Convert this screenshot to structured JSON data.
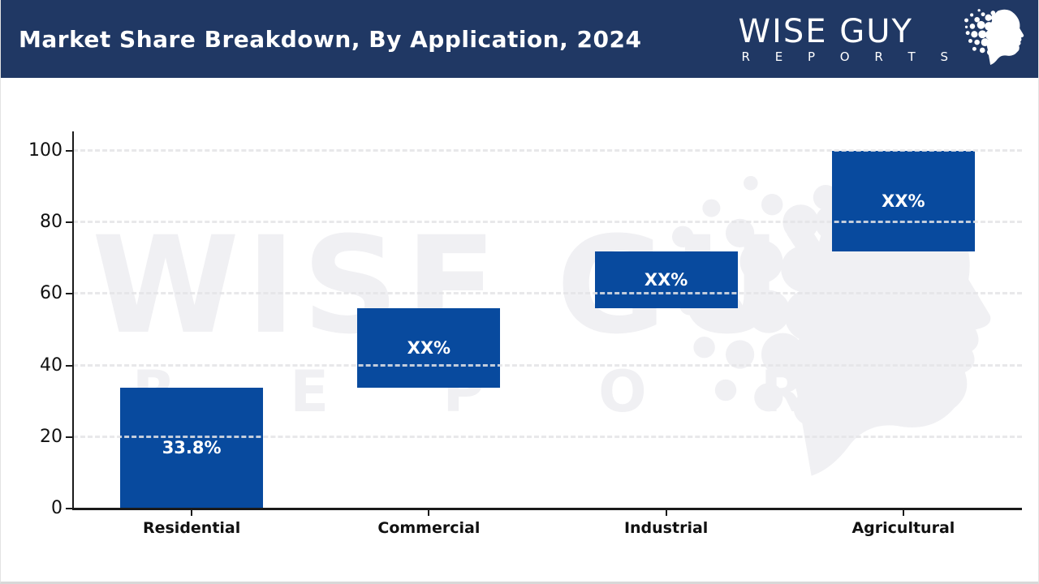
{
  "header": {
    "title": "Market Share Breakdown, By Application, 2024",
    "bg_color": "#203864",
    "logo": {
      "line1": "WISE GUY",
      "line2": "R E P O R T S",
      "head_icon": "dotted-face-profile-icon"
    }
  },
  "watermark": {
    "line1": "WISE GUY",
    "line2": "R E P O R T S",
    "head_icon": "dotted-face-profile-watermark"
  },
  "chart_data": {
    "type": "bar",
    "subtype": "waterfall-floating-bars",
    "title": "Market Share Breakdown, By Application, 2024",
    "categories": [
      "Residential",
      "Commercial",
      "Industrial",
      "Agricultural"
    ],
    "segments": [
      {
        "category": "Residential",
        "start": 0,
        "end": 33.8,
        "label": "33.8%"
      },
      {
        "category": "Commercial",
        "start": 33.8,
        "end": 56.1,
        "label": "XX%"
      },
      {
        "category": "Industrial",
        "start": 56.1,
        "end": 71.9,
        "label": "XX%"
      },
      {
        "category": "Agricultural",
        "start": 71.9,
        "end": 100,
        "label": "XX%"
      }
    ],
    "xlabel": "",
    "ylabel": "",
    "yticks": [
      0,
      20,
      40,
      60,
      80,
      100
    ],
    "ylim": [
      0,
      105
    ],
    "grid": "horizontal-dashed",
    "legend": "none",
    "bar_color": "#084A9E",
    "bar_label_color": "#ffffff",
    "axis_color": "#1a1a1a",
    "gridline_color": "#e0e0e0"
  }
}
